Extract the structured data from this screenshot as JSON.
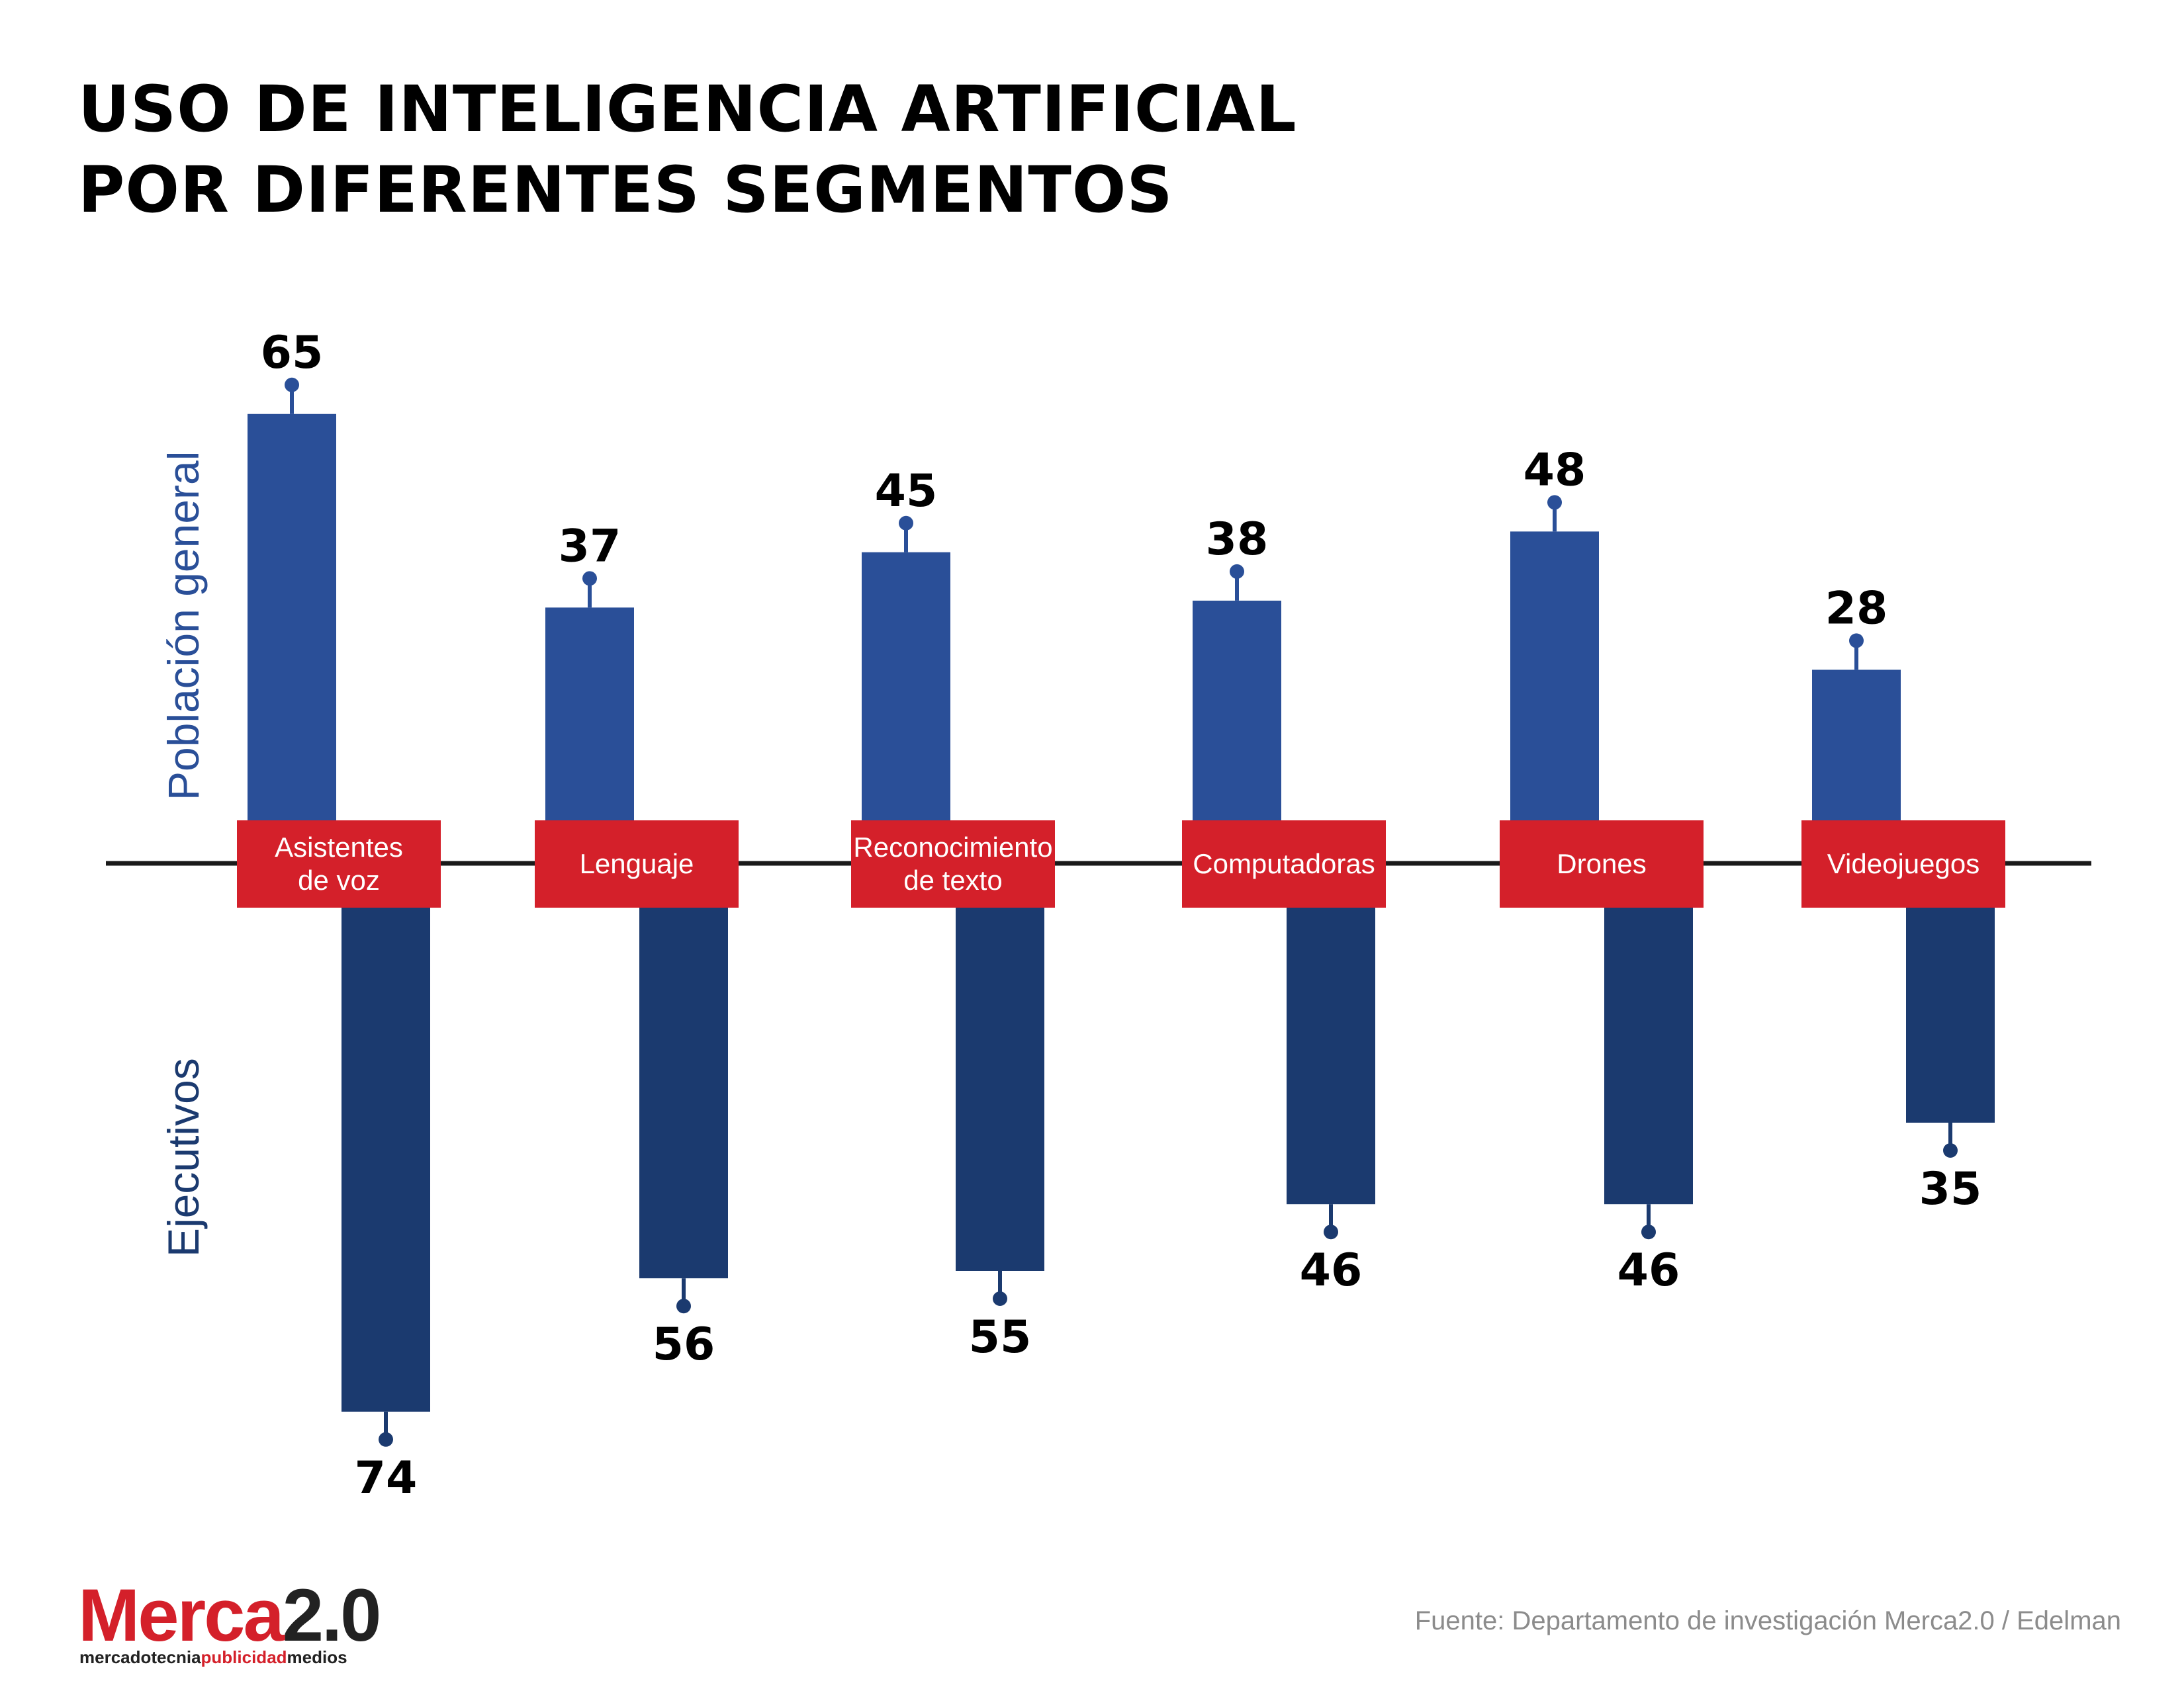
{
  "chart_data": {
    "type": "bar",
    "title": [
      "USO DE INTELIGENCIA ARTIFICIAL",
      "POR DIFERENTES SEGMENTOS"
    ],
    "categories": [
      [
        "Asistentes",
        "de voz"
      ],
      [
        "Lenguaje"
      ],
      [
        "Reconocimiento",
        "de texto"
      ],
      [
        "Computadoras"
      ],
      [
        "Drones"
      ],
      [
        "Videojuegos"
      ]
    ],
    "series": [
      {
        "name": "Población general",
        "direction": "up",
        "color": "#2a4f98",
        "values": [
          65,
          37,
          45,
          38,
          48,
          28
        ]
      },
      {
        "name": "Ejecutivos",
        "direction": "down",
        "color": "#1b3a6f",
        "values": [
          74,
          56,
          55,
          46,
          46,
          35
        ]
      }
    ],
    "category_color": "#d4202a"
  },
  "source": "Fuente: Departamento de investigación Merca2.0 / Edelman",
  "logo": {
    "brand_red": "Merca",
    "brand_dark": "2.0",
    "tagline": [
      "mercadotecnia",
      "publicidad",
      "medios"
    ]
  },
  "colors": {
    "logo_red": "#d4202a",
    "logo_dark": "#222222",
    "axis": "#1a1a1a"
  }
}
